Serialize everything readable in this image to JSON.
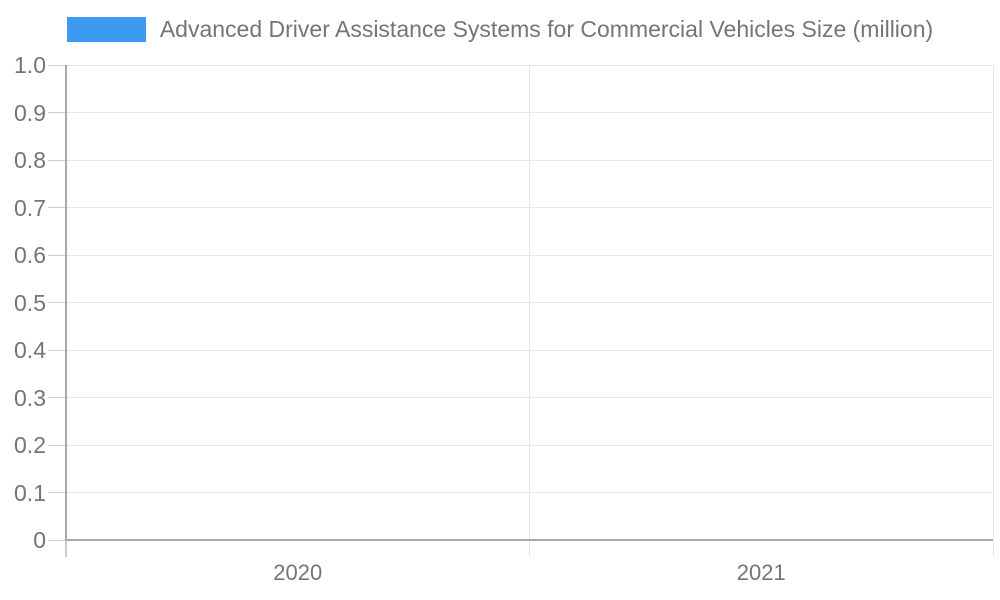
{
  "legend": {
    "label": "Advanced Driver Assistance Systems for Commercial Vehicles Size (million)"
  },
  "colors": {
    "accent": "#3C9BF0",
    "axis": "#A9A9A9",
    "grid": "#E7E7E7",
    "tick": "#CDCDCD",
    "text": "#757575",
    "background": "#FFFFFF"
  },
  "chart_data": {
    "type": "bar",
    "title": "",
    "categories": [
      "2020",
      "2021"
    ],
    "series": [
      {
        "name": "Advanced Driver Assistance Systems for Commercial Vehicles Size (million)",
        "color": "#3C9BF0",
        "values": [
          null,
          null
        ]
      }
    ],
    "ylim": [
      0,
      1
    ],
    "yticks": [
      "1.0",
      "0.9",
      "0.8",
      "0.7",
      "0.6",
      "0.5",
      "0.4",
      "0.3",
      "0.2",
      "0.1",
      "0"
    ],
    "xlabel": "",
    "ylabel": "",
    "grid": true,
    "legend_position": "top",
    "plot_is_empty": true
  }
}
